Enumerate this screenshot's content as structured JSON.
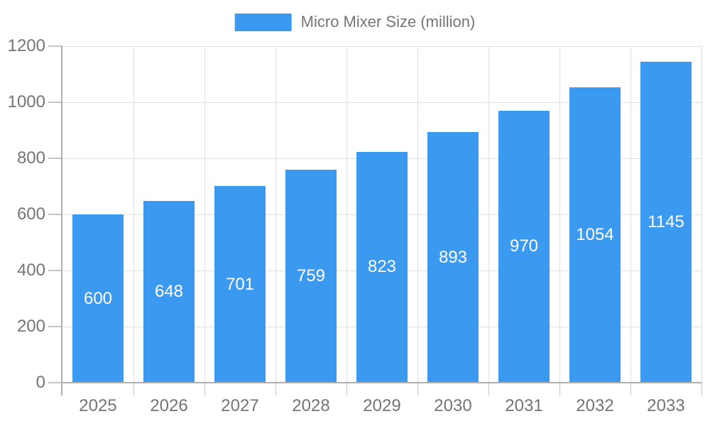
{
  "chart_data": {
    "type": "bar",
    "title": "",
    "legend": "Micro Mixer Size (million)",
    "legend_position": "top-center",
    "categories": [
      "2025",
      "2026",
      "2027",
      "2028",
      "2029",
      "2030",
      "2031",
      "2032",
      "2033"
    ],
    "values": [
      600,
      648,
      701,
      759,
      823,
      893,
      970,
      1054,
      1145
    ],
    "xlabel": "",
    "ylabel": "",
    "ylim": [
      0,
      1200
    ],
    "yticks": [
      0,
      200,
      400,
      600,
      800,
      1000,
      1200
    ],
    "grid": true,
    "bar_labels_visible": true,
    "colors": {
      "bar": "#3b99f0",
      "bar_label": "#ffffff",
      "grid": "#e0e0e0",
      "axis": "#b0b0b0",
      "tick": "#c6c6c6",
      "text": "#757575"
    }
  }
}
